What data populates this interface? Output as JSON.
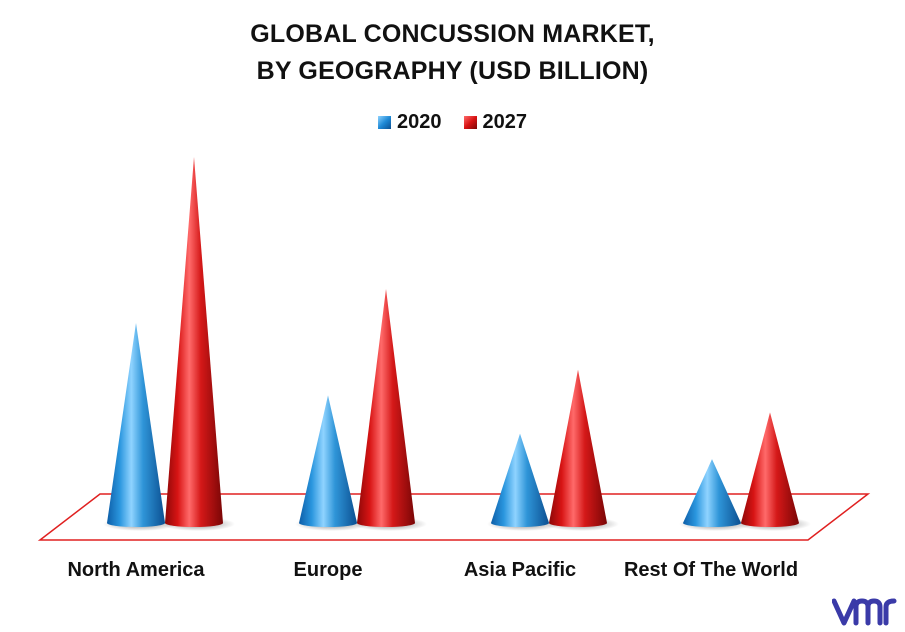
{
  "chart_data": {
    "type": "bar",
    "title": "GLOBAL CONCUSSION MARKET,",
    "subtitle": "BY GEOGRAPHY (USD BILLION)",
    "categories": [
      "North America",
      "Europe",
      "Asia Pacific",
      "Rest Of The World"
    ],
    "series": [
      {
        "name": "2020",
        "values": [
          4.7,
          3.0,
          2.1,
          1.5
        ],
        "color": "#1f8ad6"
      },
      {
        "name": "2027",
        "values": [
          8.6,
          5.5,
          3.6,
          2.6
        ],
        "color": "#d81414"
      }
    ],
    "ylim": [
      0,
      9
    ],
    "legend": "top-center",
    "grid": false
  },
  "colors": {
    "floor_outline": "#e02020",
    "blue_light": "#8fd3ff",
    "blue_dark": "#0b4f91",
    "red_light": "#ff6a6a",
    "red_dark": "#7a0606"
  },
  "logo": {
    "icon": "vmr-logo-icon",
    "color": "#3a3aa8"
  }
}
